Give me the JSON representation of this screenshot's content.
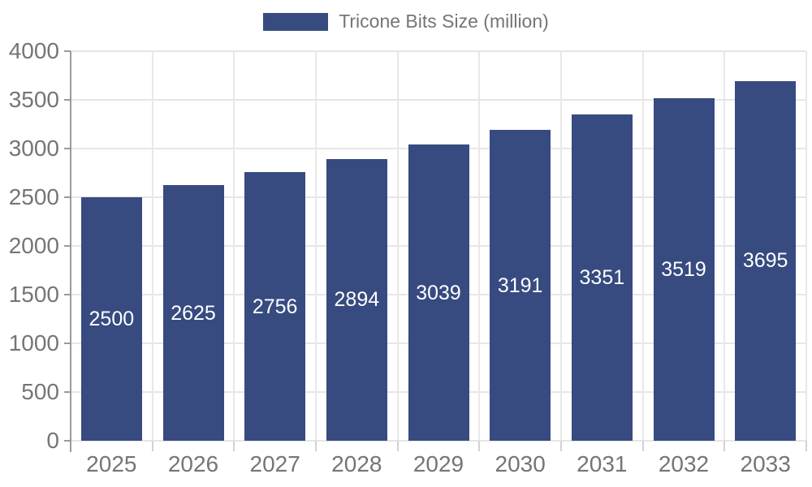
{
  "legend": {
    "label": "Tricone Bits Size (million)"
  },
  "chart_data": {
    "type": "bar",
    "title": "",
    "xlabel": "",
    "ylabel": "",
    "categories": [
      "2025",
      "2026",
      "2027",
      "2028",
      "2029",
      "2030",
      "2031",
      "2032",
      "2033"
    ],
    "series": [
      {
        "name": "Tricone Bits Size (million)",
        "values": [
          2500,
          2625,
          2756,
          2894,
          3039,
          3191,
          3351,
          3519,
          3695
        ],
        "color": "#374B80"
      }
    ],
    "bar_value_labels": [
      "2500",
      "2625",
      "2756",
      "2894",
      "3039",
      "3191",
      "3351",
      "3519",
      "3695"
    ],
    "ylim": [
      0,
      4000
    ],
    "ytick_step": 500,
    "yticks": [
      0,
      500,
      1000,
      1500,
      2000,
      2500,
      3000,
      3500,
      4000
    ],
    "grid": true,
    "legend_position": "top-center",
    "colors": {
      "bar": "#374B80",
      "bar_label_text": "#ffffff",
      "axis_label_text": "#757575",
      "legend_text": "#757575",
      "gridline": "#e6e6e6",
      "axis_line": "#9a9a9a",
      "background": "#ffffff"
    }
  }
}
